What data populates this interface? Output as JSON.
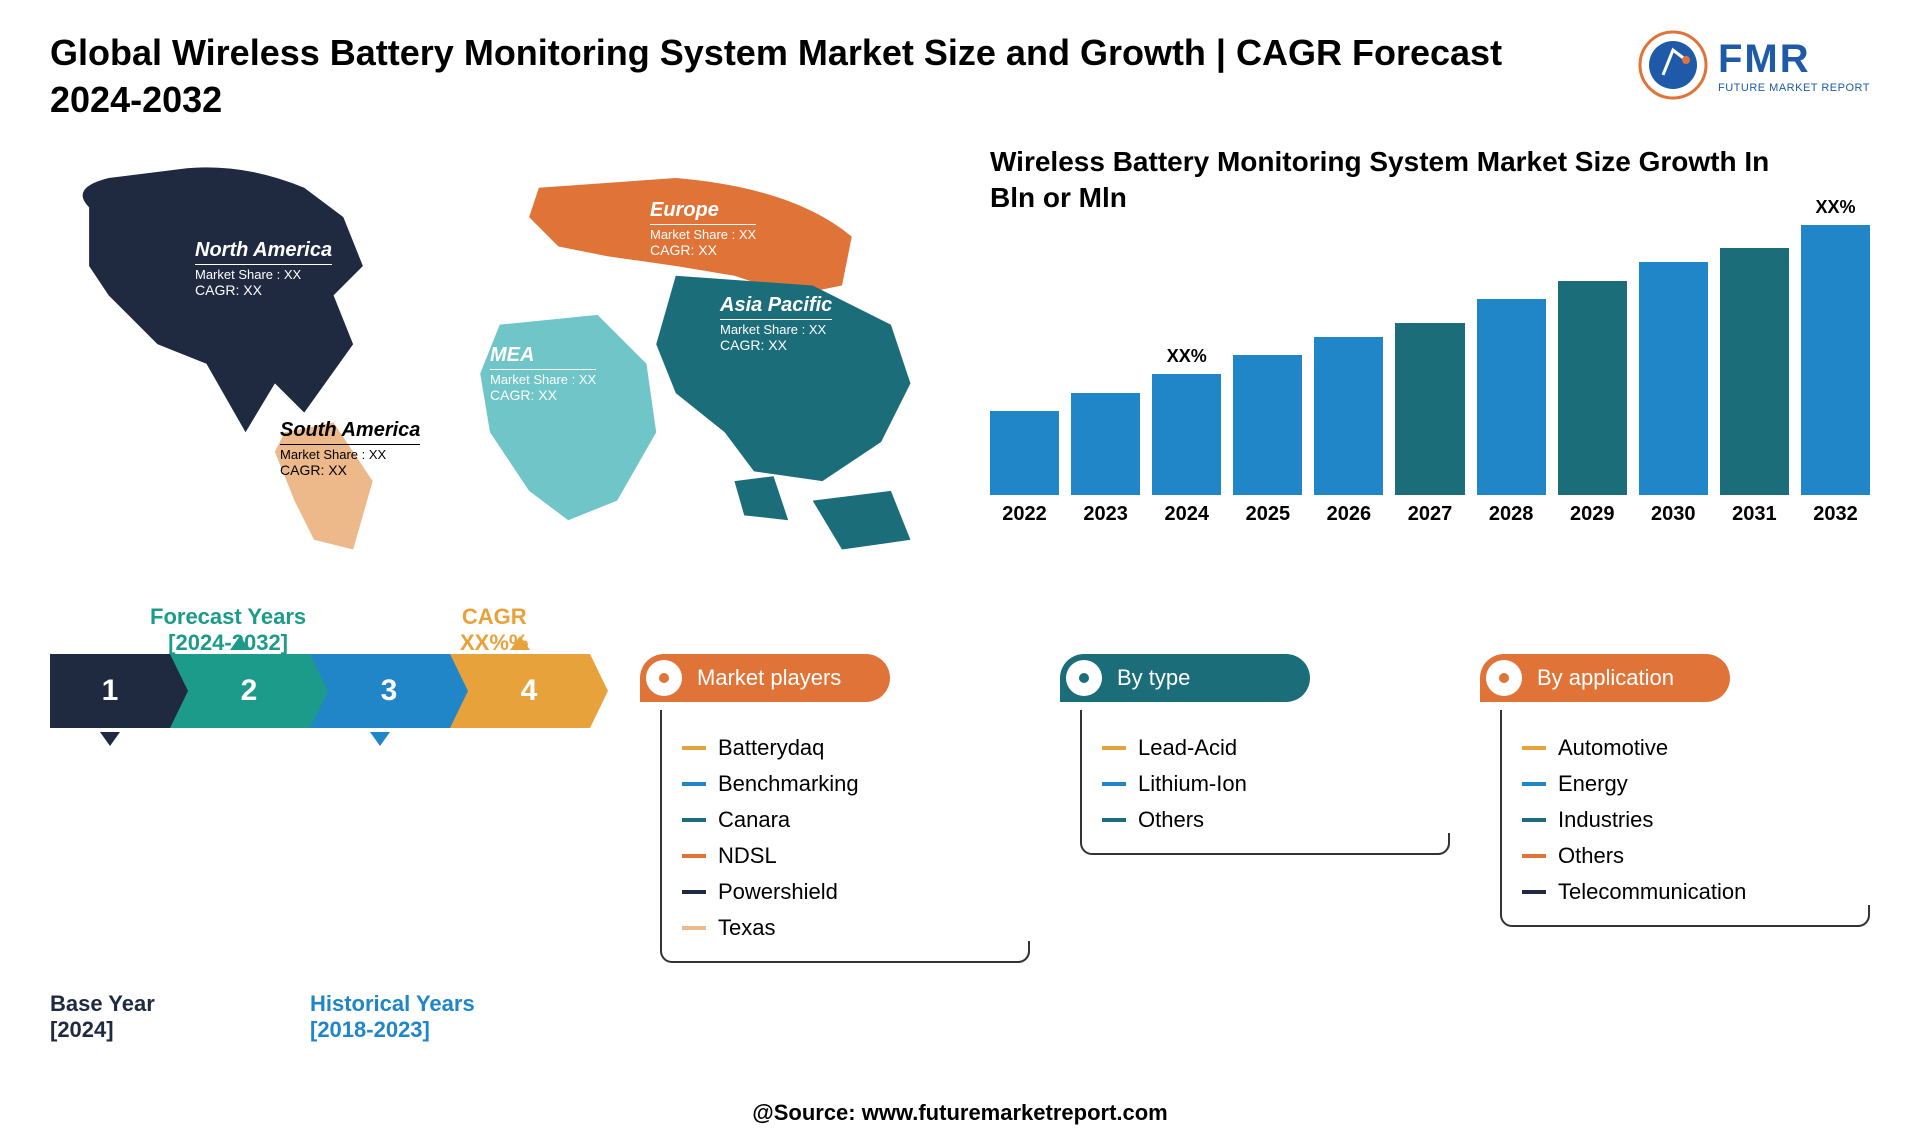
{
  "header": {
    "title": "Global Wireless Battery Monitoring System Market Size and Growth | CAGR Forecast 2024-2032",
    "logo_text": "FMR",
    "logo_subtitle": "FUTURE MARKET REPORT"
  },
  "map": {
    "regions": {
      "north_america": {
        "name": "North America",
        "share": "Market Share : XX",
        "cagr": "CAGR: XX",
        "color": "#1f2940"
      },
      "south_america": {
        "name": "South America",
        "share": "Market Share : XX",
        "cagr": "CAGR: XX",
        "color": "#eeb98a"
      },
      "europe": {
        "name": "Europe",
        "share": "Market Share : XX",
        "cagr": "CAGR: XX",
        "color": "#e07438"
      },
      "mea": {
        "name": "MEA",
        "share": "Market Share : XX",
        "cagr": "CAGR: XX",
        "color": "#6fc5c7"
      },
      "asia_pacific": {
        "name": "Asia Pacific",
        "share": "Market Share : XX",
        "cagr": "CAGR: XX",
        "color": "#1a6d79"
      }
    }
  },
  "chart": {
    "title": "Wireless Battery Monitoring System Market Size Growth In\nBln or Mln",
    "type": "bar",
    "years": [
      "2022",
      "2023",
      "2024",
      "2025",
      "2026",
      "2027",
      "2028",
      "2029",
      "2030",
      "2031",
      "2032"
    ],
    "values": [
      90,
      110,
      130,
      150,
      170,
      185,
      210,
      230,
      250,
      265,
      290
    ],
    "max_value": 300,
    "label_2024": "XX%",
    "label_2032": "XX%",
    "bar_colors": [
      "#2086c7",
      "#2086c7",
      "#2086c7",
      "#2086c7",
      "#2086c7",
      "#1a6d79",
      "#2086c7",
      "#1a6d79",
      "#2086c7",
      "#1a6d79",
      "#2086c7"
    ]
  },
  "timeline": {
    "forecast_label": "Forecast Years",
    "forecast_range": "[2024-2032]",
    "cagr_label": "CAGR",
    "cagr_value": "XX%%",
    "seg1": "1",
    "seg2": "2",
    "seg3": "3",
    "seg4": "4",
    "base_label": "Base Year",
    "base_value": "[2024]",
    "hist_label": "Historical Years",
    "hist_value": "[2018-2023]",
    "colors": {
      "s1": "#1f2940",
      "s2": "#1d9b8a",
      "s3": "#2086c7",
      "s4": "#e8a23c"
    }
  },
  "categories": {
    "players": {
      "title": "Market players",
      "header_color": "#e07438",
      "items": [
        {
          "label": "Batterydaq",
          "tick": "#e8a23c"
        },
        {
          "label": "Benchmarking",
          "tick": "#2086c7"
        },
        {
          "label": "Canara",
          "tick": "#1a6d79"
        },
        {
          "label": "NDSL",
          "tick": "#e07438"
        },
        {
          "label": "Powershield",
          "tick": "#1f2940"
        },
        {
          "label": "Texas",
          "tick": "#eeb98a"
        }
      ]
    },
    "type": {
      "title": "By type",
      "header_color": "#1a6d79",
      "items": [
        {
          "label": "Lead-Acid",
          "tick": "#e8a23c"
        },
        {
          "label": "Lithium-Ion",
          "tick": "#2086c7"
        },
        {
          "label": "Others",
          "tick": "#1a6d79"
        }
      ]
    },
    "application": {
      "title": "By application",
      "header_color": "#e07438",
      "items": [
        {
          "label": "Automotive",
          "tick": "#e8a23c"
        },
        {
          "label": "Energy",
          "tick": "#2086c7"
        },
        {
          "label": "Industries",
          "tick": "#1a6d79"
        },
        {
          "label": "Others",
          "tick": "#e07438"
        },
        {
          "label": "Telecommunication",
          "tick": "#1f2940"
        }
      ]
    }
  },
  "source": "@Source: www.futuremarketreport.com"
}
